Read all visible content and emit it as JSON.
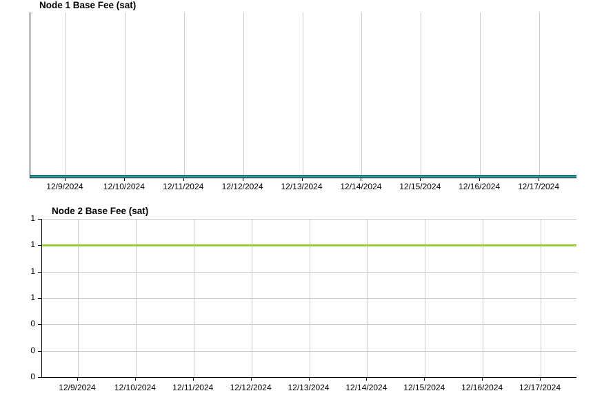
{
  "colors": {
    "background": "#ffffff",
    "axis": "#000000",
    "gridline": "#cccccc",
    "node1_line": "#2fa3a3",
    "node1_line_edge": "#134c4c",
    "node2_line": "#9ccd35",
    "text": "#000000"
  },
  "chart_data": [
    {
      "type": "line",
      "title": "Node 1 Base Fee (sat)",
      "x": [
        "12/9/2024",
        "12/10/2024",
        "12/11/2024",
        "12/12/2024",
        "12/13/2024",
        "12/14/2024",
        "12/15/2024",
        "12/16/2024",
        "12/17/2024"
      ],
      "series": [
        {
          "name": "Node 1 Base Fee",
          "values": [
            0,
            0,
            0,
            0,
            0,
            0,
            0,
            0,
            0
          ],
          "color": "#2fa3a3",
          "edge": "#134c4c"
        }
      ],
      "xlabel": "",
      "ylabel": "",
      "ylim": [
        0,
        1
      ],
      "y_tick_labels": [],
      "grid": "vertical-only",
      "legend": "none"
    },
    {
      "type": "line",
      "title": "Node 2 Base Fee (sat)",
      "x": [
        "12/9/2024",
        "12/10/2024",
        "12/11/2024",
        "12/12/2024",
        "12/13/2024",
        "12/14/2024",
        "12/15/2024",
        "12/16/2024",
        "12/17/2024"
      ],
      "series": [
        {
          "name": "Node 2 Base Fee",
          "values": [
            1,
            1,
            1,
            1,
            1,
            1,
            1,
            1,
            1
          ],
          "color": "#9ccd35",
          "edge": ""
        }
      ],
      "xlabel": "",
      "ylabel": "",
      "ylim": [
        0,
        1.2
      ],
      "y_ticks": [
        1.2,
        1.0,
        0.8,
        0.6,
        0.4,
        0.2,
        0
      ],
      "y_tick_labels": [
        "1",
        "1",
        "1",
        "1",
        "0",
        "0",
        "0"
      ],
      "grid": "both",
      "legend": "none"
    }
  ]
}
